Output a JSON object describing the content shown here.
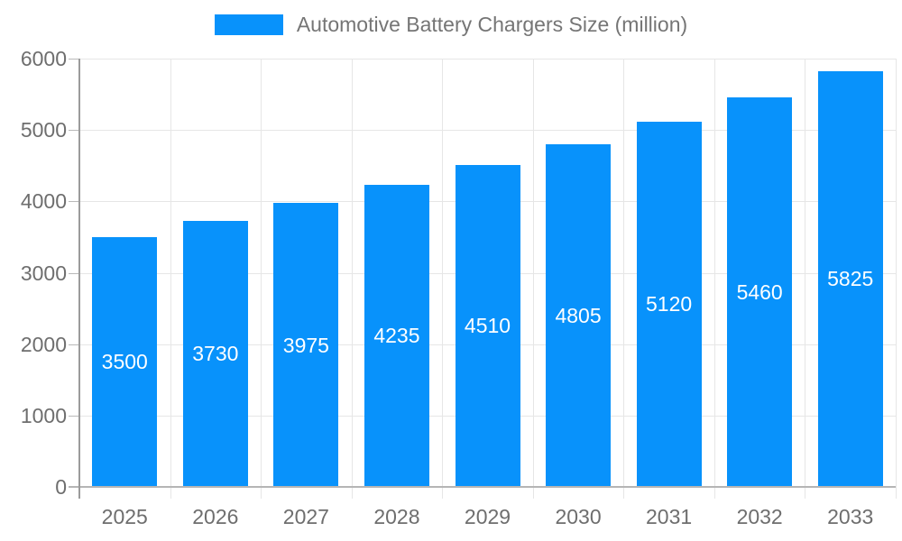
{
  "chart_data": {
    "type": "bar",
    "title": "Automotive Battery Chargers Size (million)",
    "categories": [
      "2025",
      "2026",
      "2027",
      "2028",
      "2029",
      "2030",
      "2031",
      "2032",
      "2033"
    ],
    "values": [
      3500,
      3730,
      3975,
      4235,
      4510,
      4805,
      5120,
      5460,
      5825
    ],
    "xlabel": "",
    "ylabel": "",
    "ylim": [
      0,
      6000
    ],
    "ytick_step": 1000,
    "yticks": [
      "0",
      "1000",
      "2000",
      "3000",
      "4000",
      "5000",
      "6000"
    ],
    "grid": true,
    "legend_position": "top-center",
    "bar_labels_position": "inside-center",
    "colors": {
      "bar": "#0892fb",
      "bar_label": "#ffffff",
      "axis_text": "#6e6e6e",
      "legend_text": "#757575",
      "gridline": "#e6e6e6",
      "tick": "#b9b9b9",
      "zero_line": "#b5b5b5",
      "axis_line": "#9b9b9b"
    }
  }
}
